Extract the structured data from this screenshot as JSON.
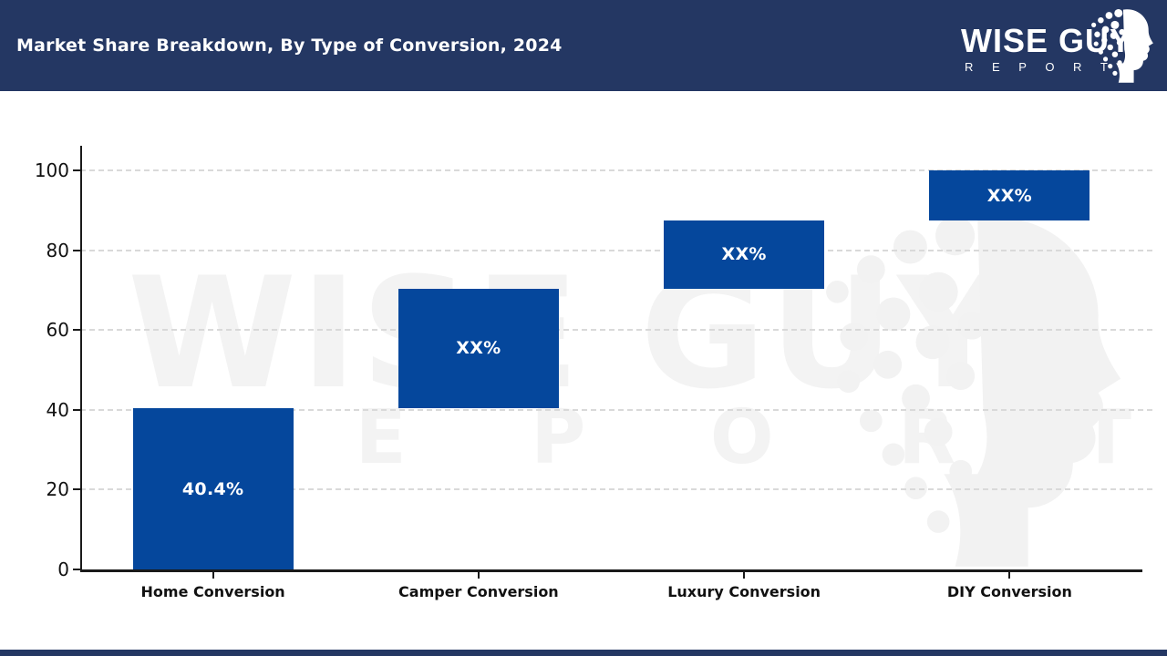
{
  "header": {
    "title": "Market Share Breakdown, By Type of Conversion, 2024",
    "background_color": "#243763"
  },
  "logo": {
    "line1": "WISE GUY",
    "line2": "R E P O R T S"
  },
  "watermark": {
    "line1": "WISE GUY",
    "line2": "R E P O R T S"
  },
  "chart_data": {
    "type": "bar",
    "subtype": "floating-waterfall",
    "title": "Market Share Breakdown, By Type of Conversion, 2024",
    "categories": [
      "Home Conversion",
      "Camper Conversion",
      "Luxury Conversion",
      "DIY Conversion"
    ],
    "series": [
      {
        "name": "Market Share",
        "segments": [
          {
            "start": 0,
            "end": 40.4,
            "label": "40.4%"
          },
          {
            "start": 40.4,
            "end": 70.4,
            "label": "XX%"
          },
          {
            "start": 70.4,
            "end": 87.4,
            "label": "XX%"
          },
          {
            "start": 87.4,
            "end": 100,
            "label": "XX%"
          }
        ]
      }
    ],
    "values": [
      40.4,
      30.0,
      17.0,
      12.6
    ],
    "xlabel": "",
    "ylabel": "",
    "yticks": [
      0,
      20,
      40,
      60,
      80,
      100
    ],
    "ylim": [
      0,
      105
    ],
    "grid": "horizontal-dashed",
    "legend": "none",
    "bar_color": "#05479C",
    "bar_label_color": "#FFFFFF",
    "grid_color": "#D9D9D9",
    "axis_color": "#1A1A1A"
  },
  "colors": {
    "header_navy": "#243763",
    "bar_blue": "#05479C",
    "watermark_gray": "#F2F2F2",
    "background": "#FFFFFF"
  }
}
